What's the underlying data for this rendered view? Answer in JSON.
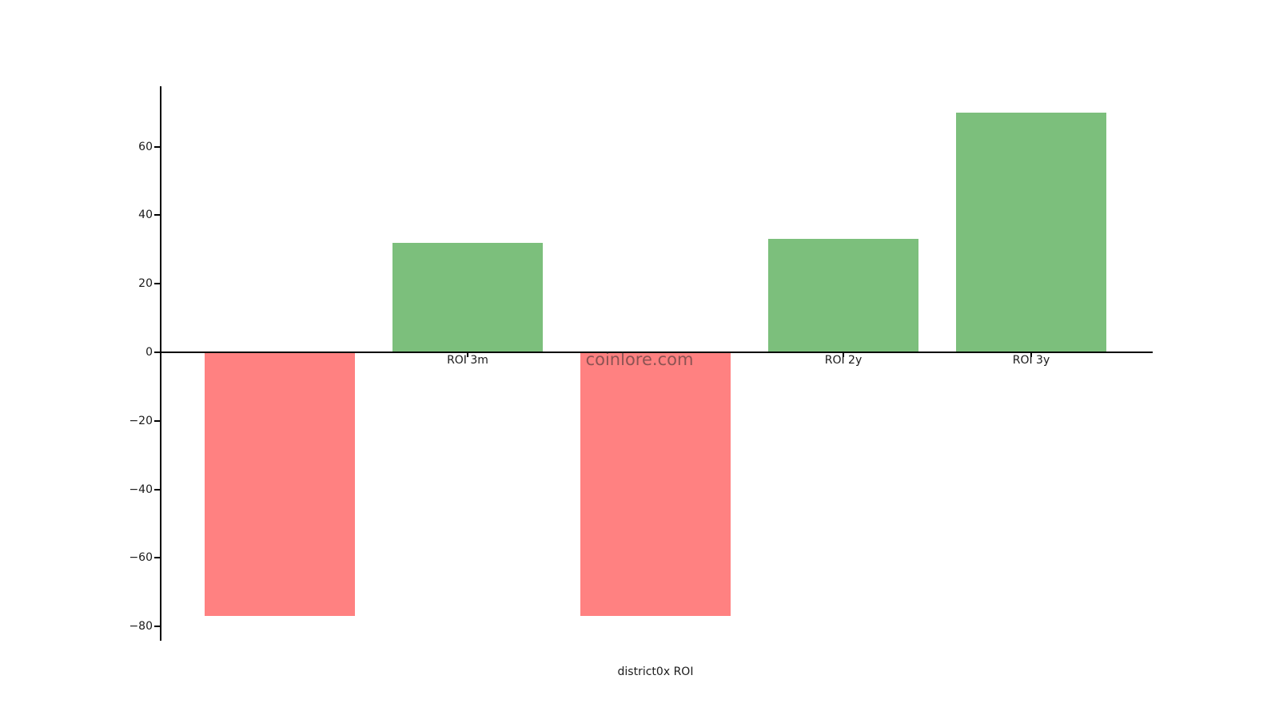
{
  "chart_data": {
    "type": "bar",
    "title": "",
    "xlabel": "district0x ROI",
    "ylabel": "",
    "categories": [
      "",
      "ROI 3m",
      "",
      "ROI 2y",
      "ROI 3y"
    ],
    "values": [
      -77,
      32,
      -77,
      33,
      70
    ],
    "bar_colors": [
      "#ff8181",
      "#7cbf7c",
      "#ff8181",
      "#7cbf7c",
      "#7cbf7c"
    ],
    "yticks": [
      60,
      40,
      20,
      0,
      -20,
      -40,
      -60,
      -80
    ],
    "ylim": [
      -84.35,
      77.35
    ],
    "grid": false,
    "legend": "none",
    "watermark": "coinlore.com",
    "colors": {
      "positive_bar": "#7cbf7c",
      "negative_bar": "#ff8181",
      "axis": "#000000",
      "text": "#1a1a1a"
    },
    "notes": "x tick labels under the two negative (red) bars are hidden behind the bars"
  }
}
